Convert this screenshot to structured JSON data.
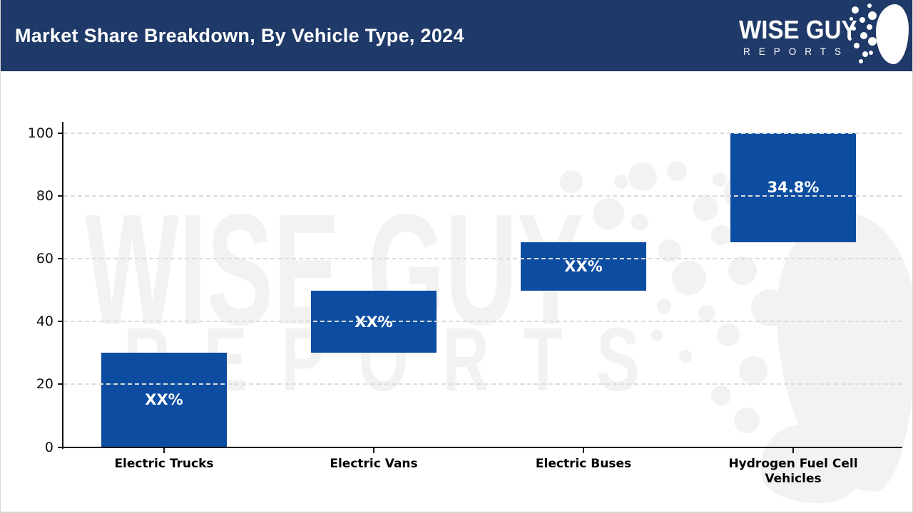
{
  "header": {
    "title": "Market Share Breakdown, By Vehicle Type, 2024",
    "logo": {
      "name": "WISE GUY",
      "sub": "REPORTS",
      "icon": "face-profile-dots-icon"
    }
  },
  "watermark": {
    "name": "WISE GUY",
    "sub": "REPORTS"
  },
  "colors": {
    "header_bg": "#1f3a68",
    "bar": "#0d4da1",
    "grid": "#dcdcdc",
    "axis": "#111111",
    "bar_label": "#ffffff",
    "watermark": "#f2f2f3"
  },
  "chart_data": {
    "type": "bar",
    "subtype": "waterfall",
    "title": "Market Share Breakdown, By Vehicle Type, 2024",
    "categories": [
      "Electric Trucks",
      "Electric Vans",
      "Electric Buses",
      "Hydrogen Fuel Cell Vehicles"
    ],
    "series": [
      {
        "name": "Market share (%)",
        "segments": [
          {
            "category": "Electric Trucks",
            "start": 0,
            "end": 30,
            "label": "XX%"
          },
          {
            "category": "Electric Vans",
            "start": 30,
            "end": 49.8,
            "label": "XX%"
          },
          {
            "category": "Electric Buses",
            "start": 49.8,
            "end": 65.2,
            "label": "XX%"
          },
          {
            "category": "Hydrogen Fuel Cell Vehicles",
            "start": 65.2,
            "end": 100,
            "label": "34.8%"
          }
        ]
      }
    ],
    "xlabel": "",
    "ylabel": "",
    "ylim": [
      0,
      100
    ],
    "yticks": [
      0,
      20,
      40,
      60,
      80,
      100
    ],
    "grid": "horizontal-dashed",
    "legend": "none",
    "bar_color": "#0d4da1"
  }
}
